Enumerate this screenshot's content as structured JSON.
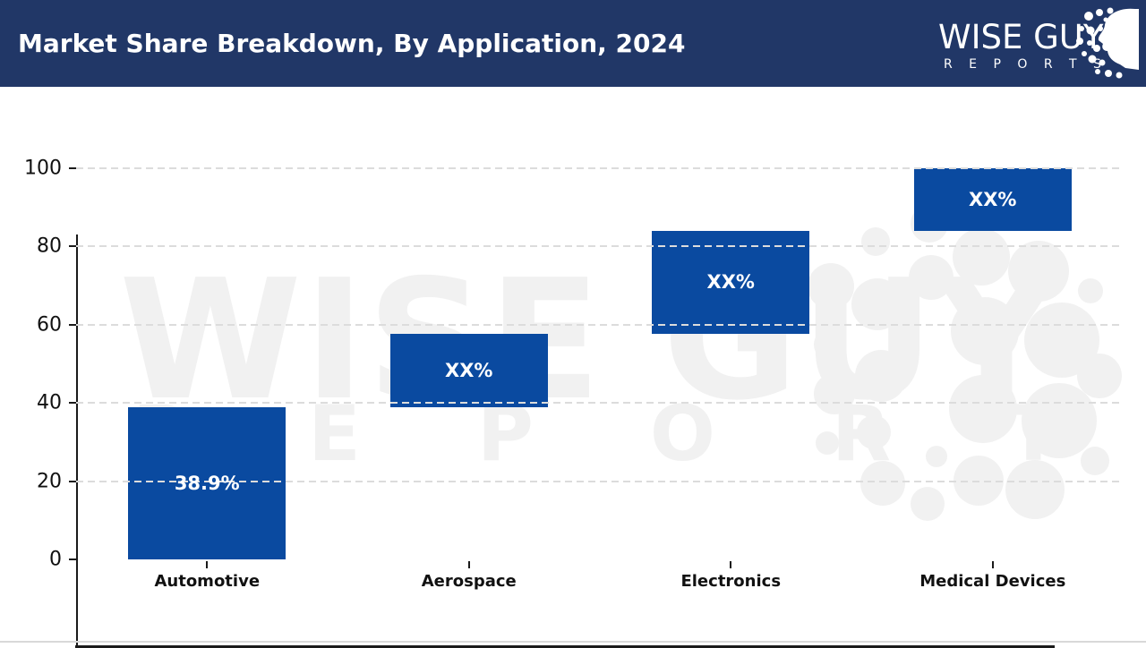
{
  "header": {
    "title": "Market Share Breakdown, By Application, 2024",
    "logo": {
      "line1": "WISE GUY",
      "line2": "R E P O R T S"
    }
  },
  "watermark": {
    "line1": "WISE GUY",
    "line2": "R E P O R T S"
  },
  "chart_data": {
    "type": "bar",
    "subtype": "waterfall-floating-bars",
    "title": "Market Share Breakdown, By Application, 2024",
    "categories": [
      "Automotive",
      "Aerospace",
      "Electronics",
      "Medical Devices"
    ],
    "segments": [
      {
        "category": "Automotive",
        "start": 0,
        "end": 38.9,
        "label": "38.9%"
      },
      {
        "category": "Aerospace",
        "start": 38.9,
        "end": 57.6,
        "label": "XX%"
      },
      {
        "category": "Electronics",
        "start": 57.6,
        "end": 83.9,
        "label": "XX%"
      },
      {
        "category": "Medical Devices",
        "start": 83.9,
        "end": 100,
        "label": "XX%"
      }
    ],
    "y_ticks": [
      0,
      20,
      40,
      60,
      80,
      100
    ],
    "ylim": [
      0,
      105
    ],
    "xlabel": "",
    "ylabel": "",
    "grid": "dashed-horizontal-over-bars",
    "legend": "none",
    "bar_color": "#0a4aa0",
    "header_color": "#213767",
    "label_color": "#ffffff",
    "watermark_color": "#f1f1f1"
  }
}
